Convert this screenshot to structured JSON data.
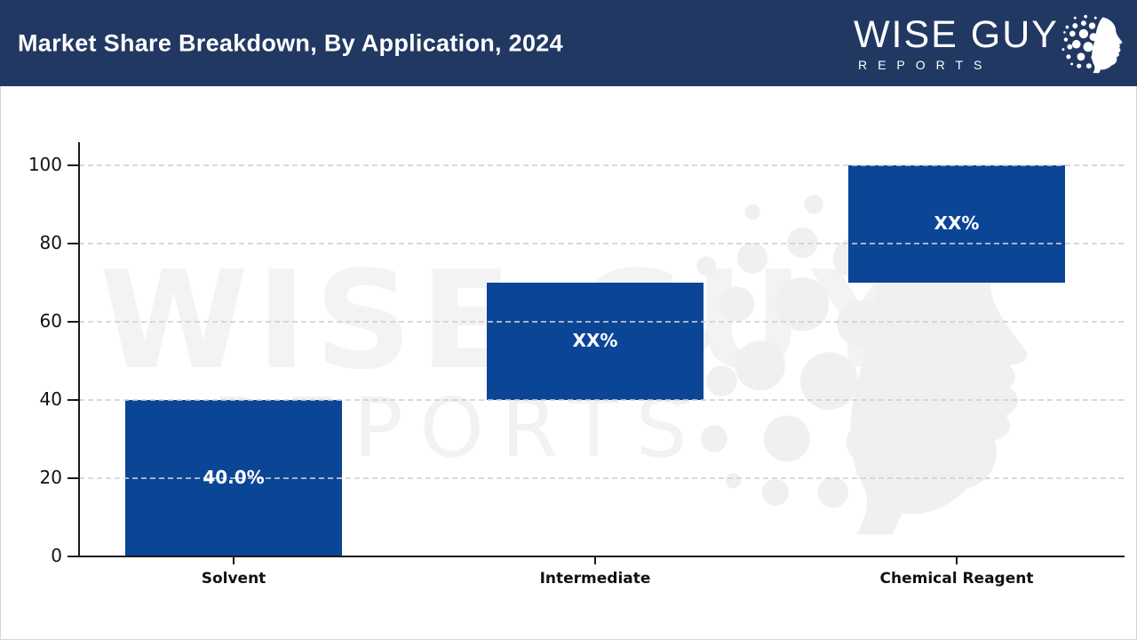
{
  "header": {
    "title": "Market Share Breakdown, By Application, 2024",
    "bg_color": "#213863",
    "logo": {
      "wordmark": "WISE GUY",
      "subtitle": "REPORTS"
    }
  },
  "watermark": {
    "wordmark": "WISE GUY",
    "subtitle": "REPORTS"
  },
  "chart_data": {
    "type": "bar",
    "subtype": "floating-segment-waterfall",
    "title": "Market Share Breakdown, By Application, 2024",
    "categories": [
      "Solvent",
      "Intermediate",
      "Chemical Reagent"
    ],
    "segments": [
      {
        "category": "Solvent",
        "from": 0,
        "to": 40,
        "label": "40.0%"
      },
      {
        "category": "Intermediate",
        "from": 40,
        "to": 70,
        "label": "XX%"
      },
      {
        "category": "Chemical Reagent",
        "from": 70,
        "to": 100,
        "label": "XX%"
      }
    ],
    "ylim": [
      0,
      100
    ],
    "yticks": [
      0,
      20,
      40,
      60,
      80,
      100
    ],
    "xlabel": "",
    "ylabel": "",
    "grid": "horizontal-dashed",
    "legend": "none",
    "bar_color": "#0b4596",
    "bar_label_color": "#ffffff",
    "axis_color": "#1a1a1a",
    "gridline_color": "#d9d9d9"
  }
}
